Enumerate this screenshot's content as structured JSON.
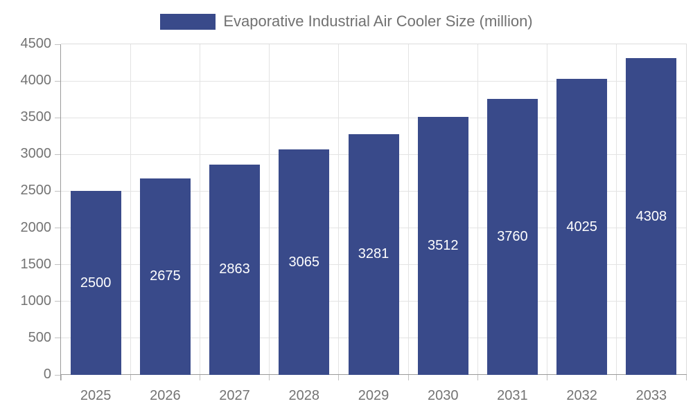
{
  "legend": {
    "label": "Evaporative Industrial Air Cooler Size (million)"
  },
  "colors": {
    "bar": "#394A8A",
    "bar_label": "#ffffff",
    "axis": "#9a9a9a",
    "tick": "#c0c0c0",
    "grid": "#e3e3e3",
    "plot_border": "#dcdcdc",
    "axis_label": "#737373",
    "legend_text": "#717171",
    "background": "#ffffff"
  },
  "chart_data": {
    "type": "bar",
    "title": "Evaporative Industrial Air Cooler Size (million)",
    "categories": [
      "2025",
      "2026",
      "2027",
      "2028",
      "2029",
      "2030",
      "2031",
      "2032",
      "2033"
    ],
    "values": [
      2500,
      2675,
      2863,
      3065,
      3281,
      3512,
      3760,
      4025,
      4308
    ],
    "series": [
      {
        "name": "Evaporative Industrial Air Cooler Size (million)",
        "values": [
          2500,
          2675,
          2863,
          3065,
          3281,
          3512,
          3760,
          4025,
          4308
        ]
      }
    ],
    "xlabel": "",
    "ylabel": "",
    "ylim": [
      0,
      4500
    ],
    "ytick_step": 500,
    "yticks": [
      0,
      500,
      1000,
      1500,
      2000,
      2500,
      3000,
      3500,
      4000,
      4500
    ],
    "grid": true,
    "legend_position": "top",
    "bar_value_labels_shown": true,
    "bar_value_label_position": "inside-center"
  }
}
